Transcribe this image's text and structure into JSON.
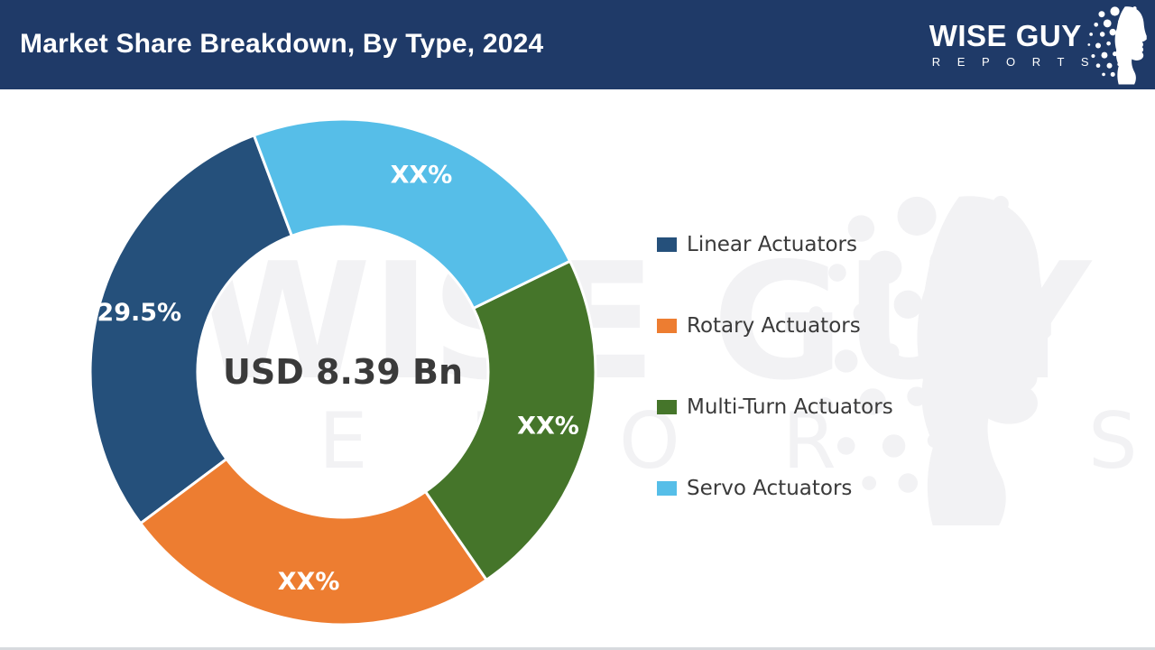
{
  "header": {
    "title": "Market Share Breakdown, By Type, 2024",
    "background_color": "#1f3a68",
    "logo": {
      "name": "WISE GUY",
      "tagline": "R E P O R T S"
    }
  },
  "watermark": {
    "line1": "WISE GUY",
    "line2": "R E P O R T S"
  },
  "chart_data": {
    "type": "pie",
    "variant": "donut",
    "title": "Market Share Breakdown, By Type, 2024",
    "center_label": "USD 8.39 Bn",
    "legend_position": "right",
    "direction": "counterclockwise",
    "start_angle_cw_from_top_deg": 339.4,
    "inner_radius_ratio": 0.575,
    "slices": [
      {
        "label": "Linear Actuators",
        "value_pct": 29.5,
        "display_label": "29.5%",
        "color": "#25507b"
      },
      {
        "label": "Rotary Actuators",
        "value_pct": 24.4,
        "display_label": "XX%",
        "color": "#ed7d31"
      },
      {
        "label": "Multi-Turn Actuators",
        "value_pct": 22.6,
        "display_label": "XX%",
        "color": "#45752a"
      },
      {
        "label": "Servo Actuators",
        "value_pct": 23.5,
        "display_label": "XX%",
        "color": "#56bee8"
      }
    ]
  }
}
